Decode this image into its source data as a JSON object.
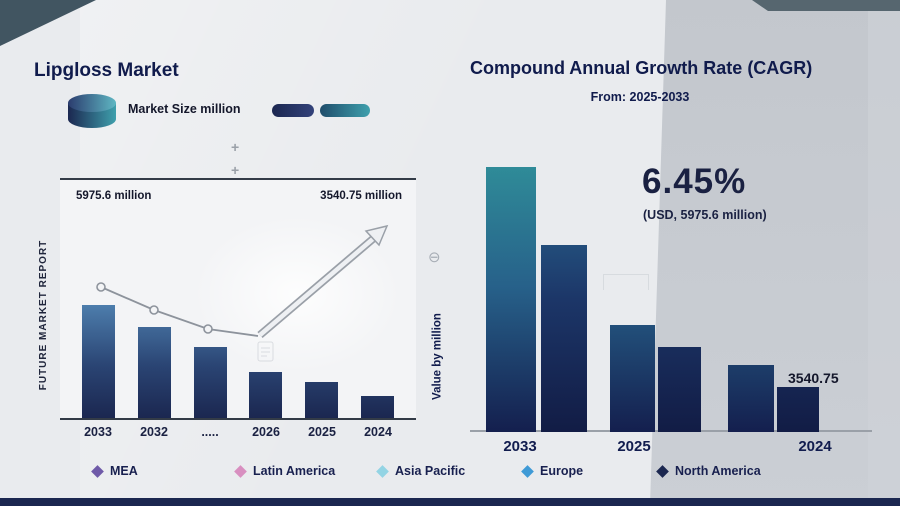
{
  "page": {
    "title": "Lipgloss Market",
    "watermark": "FUTURE MARKET REPORT",
    "colors": {
      "navy": "#1b2750",
      "teal": "#2f8b98",
      "background": "#e9ebee",
      "band_gray": "#c3c7cd"
    },
    "icons": {
      "plus": "+",
      "zoom_out": "⊖",
      "market_size": "cylinder-3d",
      "trend": "arrow-up-right",
      "legend_marker": "diamond"
    }
  },
  "legend": {
    "items": [
      {
        "label": "MEA",
        "color": "#6f5aa8"
      },
      {
        "label": "Latin America",
        "color": "#d88fc0"
      },
      {
        "label": "Asia Pacific",
        "color": "#93d4e4"
      },
      {
        "label": "Europe",
        "color": "#3f9ad6"
      },
      {
        "label": "North America",
        "color": "#1b2750"
      }
    ]
  },
  "chart_data": [
    {
      "type": "bar",
      "title": "Lipgloss Market",
      "categories": [
        "2033",
        "2032",
        ".....",
        "2026",
        "2025",
        "2024"
      ],
      "series": [
        {
          "name": "Market Size million",
          "values": [
            5975.6,
            5380,
            4840,
            4190,
            3920,
            3540.75
          ]
        }
      ],
      "value_labels": [
        "5975.6 million",
        "3540.75 million"
      ],
      "ylim": [
        3540.75,
        5975.6
      ],
      "grid": false,
      "annotations": [
        "declining trend line with markers and large upward arrow"
      ]
    },
    {
      "type": "bar",
      "title": "Compound Annual Growth Rate (CAGR)",
      "subtitle": "From: 2025-2033",
      "cagr": "6.45%",
      "cagr_note": "(USD, 5975.6 million)",
      "categories": [
        "2033",
        "2025",
        "2024"
      ],
      "series": [
        {
          "name": "bar-1",
          "values": [
            5975.6,
            2410,
            1510
          ]
        },
        {
          "name": "bar-2",
          "values": [
            4215,
            1915,
            1015
          ]
        }
      ],
      "annotation": "3540.75",
      "ylabel": "Value by million",
      "ylim": [
        0,
        5975.6
      ],
      "grid": false,
      "legend_position": "bottom"
    }
  ]
}
